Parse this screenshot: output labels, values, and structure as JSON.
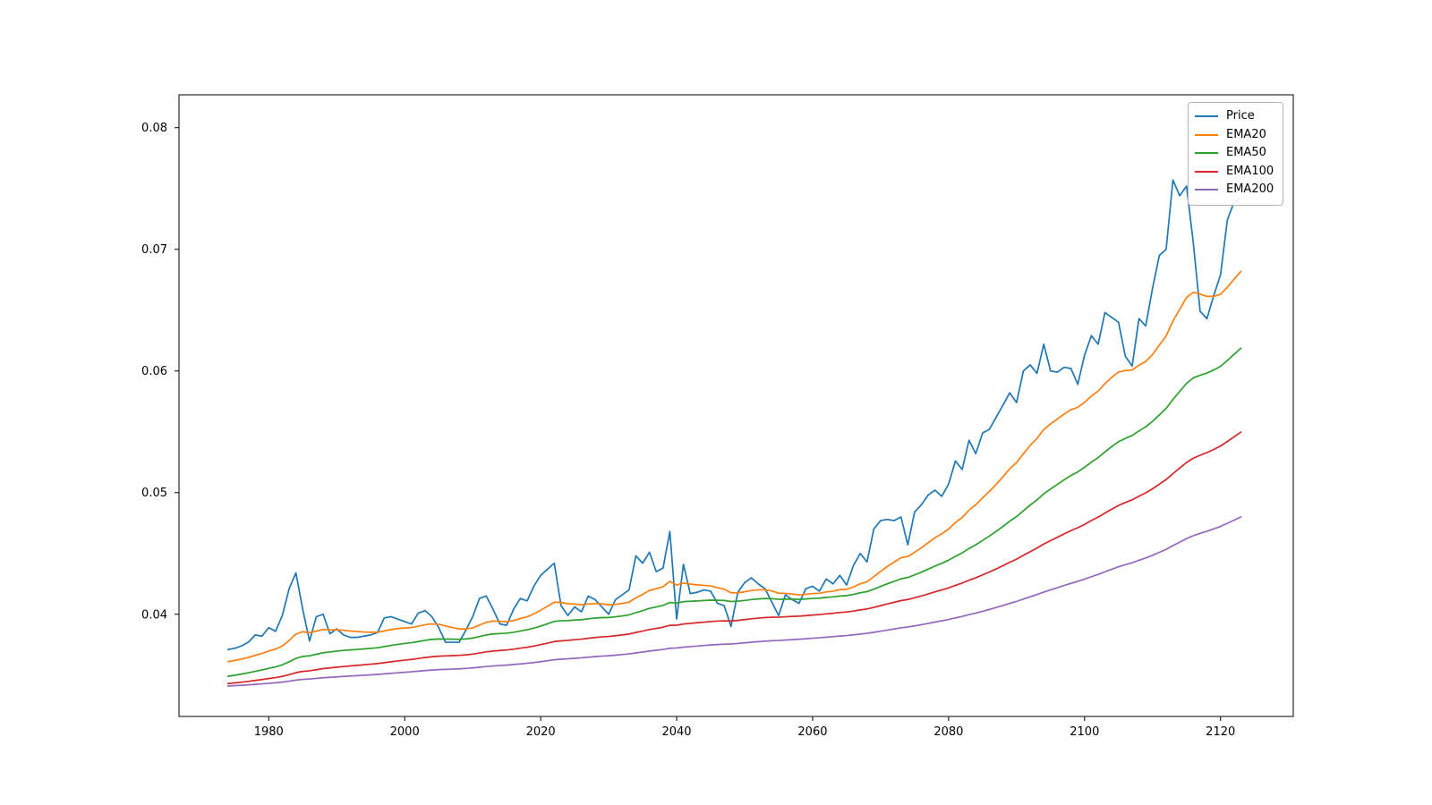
{
  "figure": {
    "background": "#ffffff",
    "frame_color": "#000000",
    "tick_color": "#000000"
  },
  "chart_data": {
    "type": "line",
    "grid": false,
    "legend": {
      "position": "upper right",
      "labels": [
        "Price",
        "EMA20",
        "EMA50",
        "EMA100",
        "EMA200"
      ]
    },
    "xlim": [
      1966.8,
      2130.7
    ],
    "ylim": [
      0.0316,
      0.0827
    ],
    "x_ticks": [
      1980,
      2000,
      2020,
      2040,
      2060,
      2080,
      2100,
      2120
    ],
    "x_tick_labels": [
      "1980",
      "2000",
      "2020",
      "2040",
      "2060",
      "2080",
      "2100",
      "2120"
    ],
    "y_ticks": [
      0.04,
      0.05,
      0.06,
      0.07,
      0.08
    ],
    "y_tick_labels": [
      "0.04",
      "0.05",
      "0.06",
      "0.07",
      "0.08"
    ],
    "x_start": 1974,
    "x_step": 1,
    "years": [
      1974,
      1975,
      1976,
      1977,
      1978,
      1979,
      1980,
      1981,
      1982,
      1983,
      1984,
      1985,
      1986,
      1987,
      1988,
      1989,
      1990,
      1991,
      1992,
      1993,
      1994,
      1995,
      1996,
      1997,
      1998,
      1999,
      2000,
      2001,
      2002,
      2003,
      2004,
      2005,
      2006,
      2007,
      2008,
      2009,
      2010,
      2011,
      2012,
      2013,
      2014,
      2015,
      2016,
      2017,
      2018,
      2019,
      2020,
      2021,
      2022,
      2023,
      2024,
      2025,
      2026,
      2027,
      2028,
      2029,
      2030,
      2031,
      2032,
      2033,
      2034,
      2035,
      2036,
      2037,
      2038,
      2039,
      2040,
      2041,
      2042,
      2043,
      2044,
      2045,
      2046,
      2047,
      2048,
      2049,
      2050,
      2051,
      2052,
      2053,
      2054,
      2055,
      2056,
      2057,
      2058,
      2059,
      2060,
      2061,
      2062,
      2063,
      2064,
      2065,
      2066,
      2067,
      2068,
      2069,
      2070,
      2071,
      2072,
      2073,
      2074,
      2075,
      2076,
      2077,
      2078,
      2079,
      2080,
      2081,
      2082,
      2083,
      2084,
      2085,
      2086,
      2087,
      2088,
      2089,
      2090,
      2091,
      2092,
      2093,
      2094,
      2095,
      2096,
      2097,
      2098,
      2099,
      2100,
      2101,
      2102,
      2103,
      2104,
      2105,
      2106,
      2107,
      2108,
      2109,
      2110,
      2111,
      2112,
      2113,
      2114,
      2115,
      2116,
      2117,
      2118,
      2119,
      2120,
      2121,
      2122,
      2123
    ],
    "series": [
      {
        "name": "Price",
        "color": "#1f77b4",
        "kind": "data",
        "values": [
          0.0371,
          0.0372,
          0.0374,
          0.0377,
          0.0383,
          0.0382,
          0.0389,
          0.0386,
          0.0399,
          0.0421,
          0.0434,
          0.0404,
          0.0378,
          0.0398,
          0.04,
          0.0384,
          0.0388,
          0.0383,
          0.0381,
          0.0381,
          0.0382,
          0.0383,
          0.0385,
          0.0397,
          0.0398,
          0.0396,
          0.0394,
          0.0392,
          0.0401,
          0.0403,
          0.0398,
          0.0389,
          0.0377,
          0.0377,
          0.0377,
          0.0387,
          0.0398,
          0.0413,
          0.0415,
          0.0404,
          0.0392,
          0.0391,
          0.0404,
          0.0413,
          0.0411,
          0.0423,
          0.0432,
          0.0437,
          0.0442,
          0.0407,
          0.0399,
          0.0406,
          0.0402,
          0.0415,
          0.0412,
          0.0406,
          0.04,
          0.0412,
          0.0416,
          0.042,
          0.0448,
          0.0442,
          0.0451,
          0.0435,
          0.0438,
          0.0468,
          0.0396,
          0.0441,
          0.0417,
          0.0418,
          0.042,
          0.0419,
          0.0409,
          0.0407,
          0.039,
          0.0418,
          0.0426,
          0.043,
          0.0425,
          0.0421,
          0.041,
          0.0399,
          0.0416,
          0.0412,
          0.0409,
          0.0421,
          0.0423,
          0.0419,
          0.0429,
          0.0425,
          0.0432,
          0.0424,
          0.044,
          0.045,
          0.0443,
          0.047,
          0.0477,
          0.0478,
          0.0477,
          0.048,
          0.0457,
          0.0484,
          0.049,
          0.0498,
          0.0502,
          0.0497,
          0.0507,
          0.0526,
          0.0519,
          0.0543,
          0.0532,
          0.0549,
          0.0552,
          0.0562,
          0.0572,
          0.0582,
          0.0574,
          0.06,
          0.0605,
          0.0598,
          0.0622,
          0.06,
          0.0599,
          0.0603,
          0.0602,
          0.0589,
          0.0613,
          0.0629,
          0.0622,
          0.0648,
          0.0644,
          0.064,
          0.0612,
          0.0604,
          0.0643,
          0.0637,
          0.0668,
          0.0695,
          0.07,
          0.0757,
          0.0744,
          0.0752,
          0.0705,
          0.0649,
          0.0643,
          0.0662,
          0.0679,
          0.0724,
          0.0739,
          0.0742
        ]
      },
      {
        "name": "EMA20",
        "color": "#ff7f0e",
        "kind": "ema",
        "span": 20,
        "seed": 0.0361
      },
      {
        "name": "EMA50",
        "color": "#2ca02c",
        "kind": "ema",
        "span": 50,
        "seed": 0.0349
      },
      {
        "name": "EMA100",
        "color": "#d62728",
        "kind": "ema",
        "span": 100,
        "seed": 0.0343
      },
      {
        "name": "EMA200",
        "color": "#9467bd",
        "kind": "ema",
        "span": 200,
        "seed": 0.0341
      }
    ]
  }
}
